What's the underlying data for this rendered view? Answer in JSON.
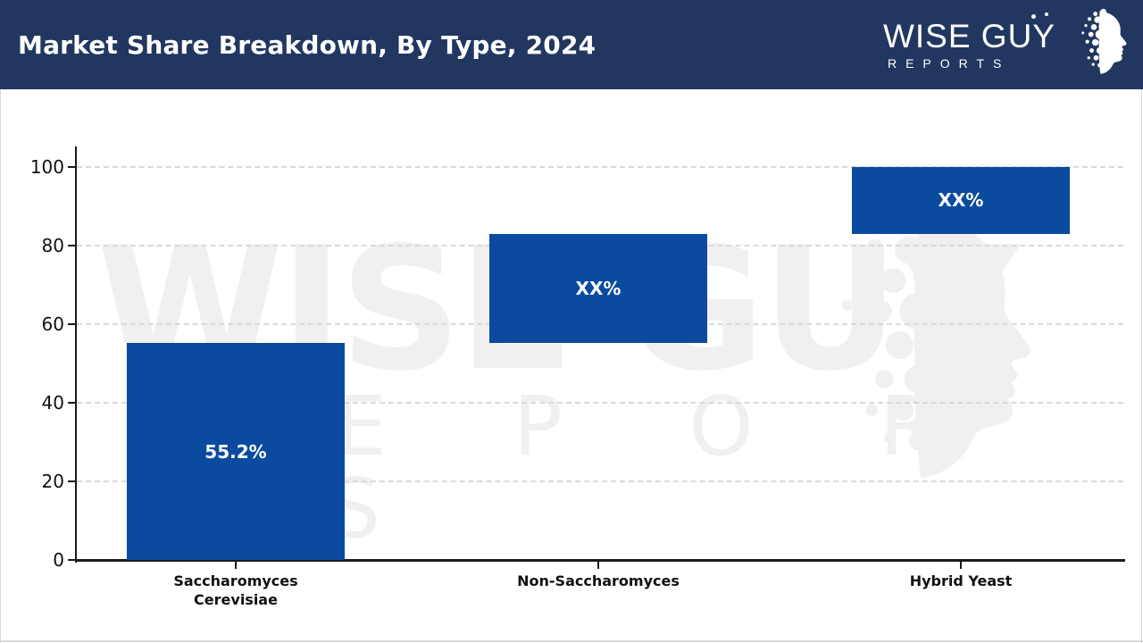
{
  "header": {
    "title": "Market Share Breakdown, By Type, 2024",
    "bg_color": "#223760",
    "logo": {
      "line1": "WISE GUY",
      "line2": "REPORTS"
    }
  },
  "watermark": {
    "line1": "WISE GUY",
    "line2": "R E P O R T S",
    "color": "#f1f0f1"
  },
  "chart_data": {
    "type": "bar",
    "subtype": "floating-segment-bars (cumulative percentage breakdown)",
    "title": "Market Share Breakdown, By Type, 2024",
    "categories": [
      "Saccharomyces Cerevisiae",
      "Non-Saccharomyces",
      "Hybrid Yeast"
    ],
    "bars": [
      {
        "category_lines": [
          "Saccharomyces",
          "Cerevisiae"
        ],
        "start": 0,
        "end": 55.2,
        "value_label": "55.2%"
      },
      {
        "category_lines": [
          "Non-Saccharomyces"
        ],
        "start": 55.2,
        "end": 83,
        "value_label": "XX%"
      },
      {
        "category_lines": [
          "Hybrid Yeast"
        ],
        "start": 83,
        "end": 100,
        "value_label": "XX%"
      }
    ],
    "yticks": [
      0,
      20,
      40,
      60,
      80,
      100
    ],
    "ylim": [
      0,
      105
    ],
    "xlabel": "",
    "ylabel": "",
    "legend": "none",
    "grid": "horizontal-dashed",
    "bar_color": "#0a4b9f",
    "gridline_color": "#d9d9d9",
    "axis_color": "#1a1a1a",
    "value_label_color": "#ffffff"
  }
}
